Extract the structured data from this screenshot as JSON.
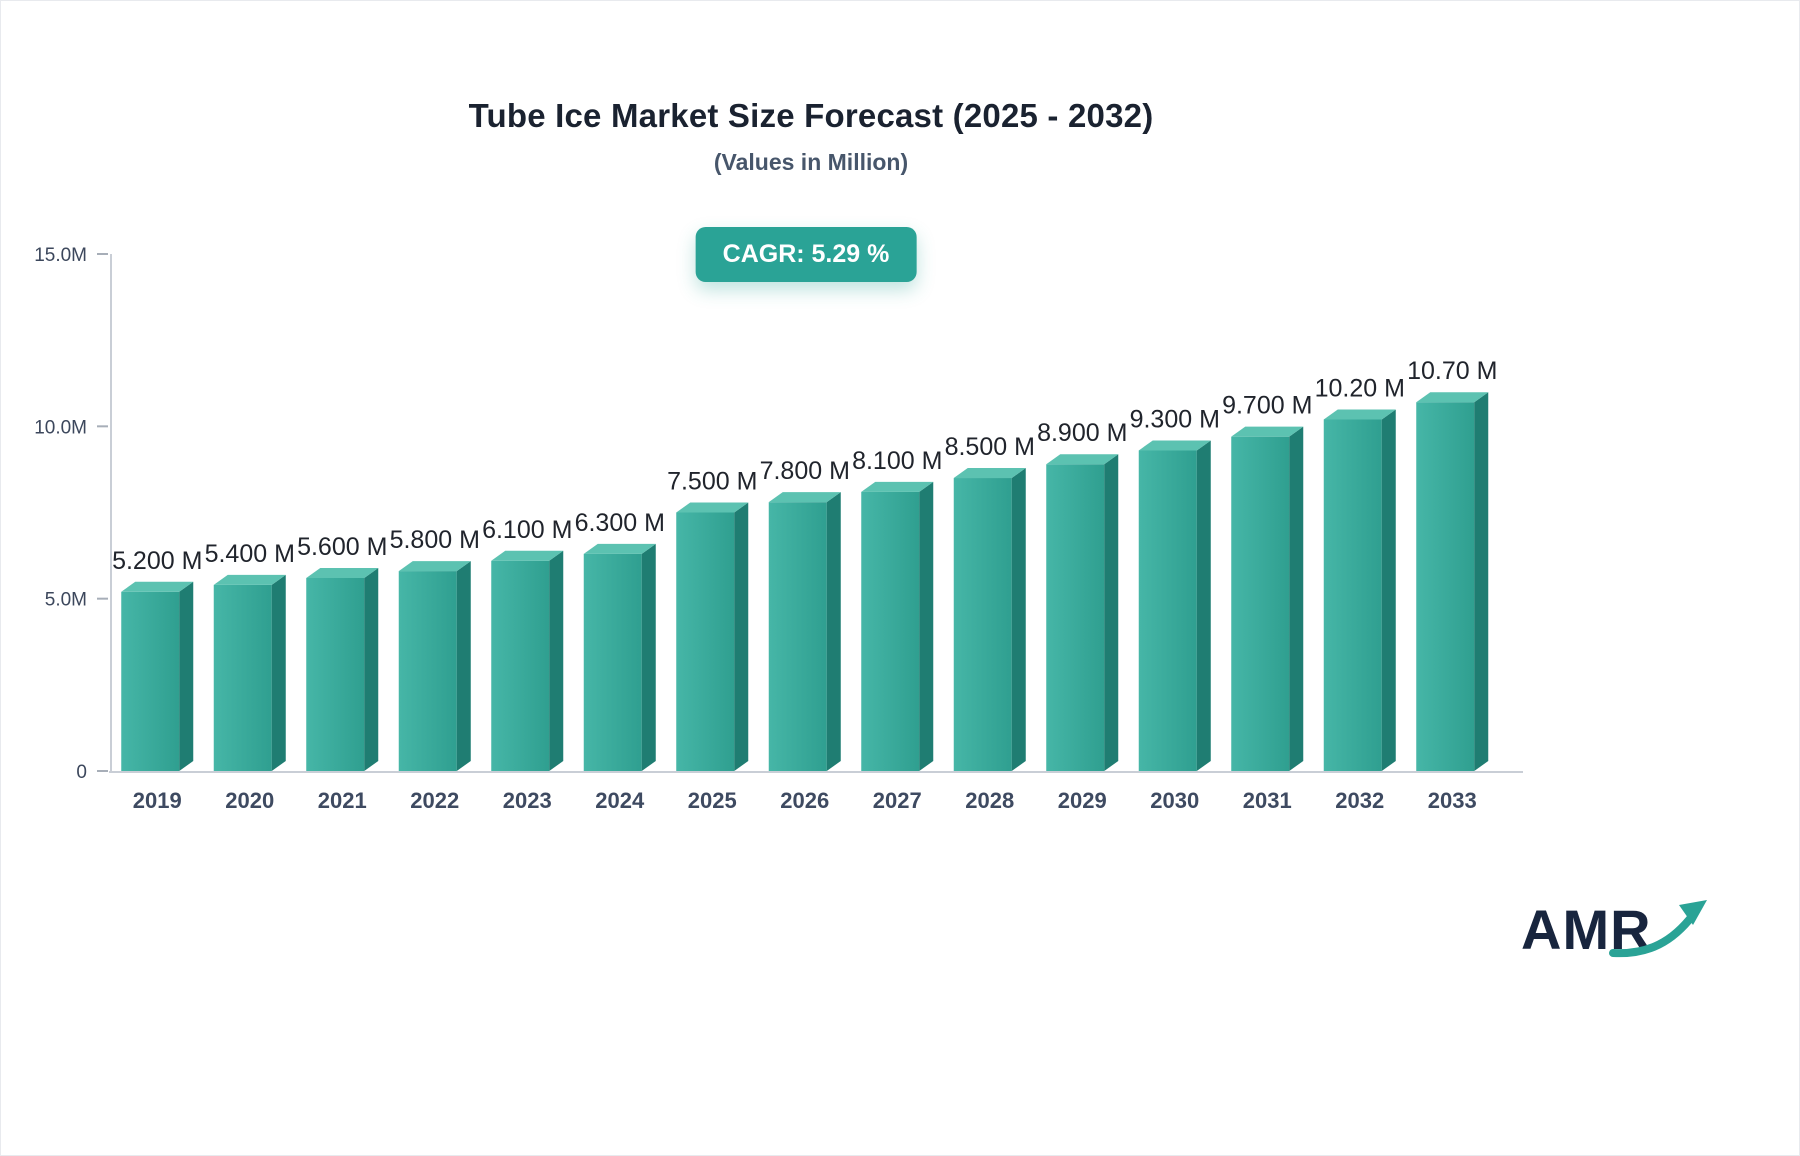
{
  "chart_data": {
    "type": "bar",
    "title": "Tube Ice Market Size Forecast (2025 - 2032)",
    "subtitle": "(Values in Million)",
    "badge": "CAGR: 5.29 %",
    "categories": [
      "2019",
      "2020",
      "2021",
      "2022",
      "2023",
      "2024",
      "2025",
      "2026",
      "2027",
      "2028",
      "2029",
      "2030",
      "2031",
      "2032",
      "2033"
    ],
    "values": [
      5.2,
      5.4,
      5.6,
      5.8,
      6.1,
      6.3,
      7.5,
      7.8,
      8.1,
      8.5,
      8.9,
      9.3,
      9.7,
      10.2,
      10.7
    ],
    "value_labels": [
      "5.200 M",
      "5.400 M",
      "5.600 M",
      "5.800 M",
      "6.100 M",
      "6.300 M",
      "7.500 M",
      "7.800 M",
      "8.100 M",
      "8.500 M",
      "8.900 M",
      "9.300 M",
      "9.700 M",
      "10.20 M",
      "10.70 M"
    ],
    "xlabel": "",
    "ylabel": "",
    "ylim": [
      0,
      15
    ],
    "yticks": [
      {
        "value": 15,
        "label": "15.0M"
      },
      {
        "value": 10,
        "label": "10.0M"
      },
      {
        "value": 5,
        "label": "5.0M"
      },
      {
        "value": 0,
        "label": "0"
      }
    ],
    "grid": false,
    "legend": "none",
    "colors": {
      "bar_front_light": "#46b6a7",
      "bar_front_dark": "#2f9f90",
      "bar_side": "#1f7d72",
      "bar_top": "#5cc2b1",
      "badge_bg": "#2aa396",
      "axis_line": "#c9ced6",
      "tick_mark": "#a7aeb8",
      "tick_text": "#3c475c",
      "year_text": "#3e4a61",
      "value_text": "#20242c",
      "title_text": "#1a2230",
      "subtitle_text": "#47566b",
      "logo_text": "#18253e",
      "logo_arrow": "#2aa396"
    }
  },
  "logo": {
    "text": "AMR"
  }
}
